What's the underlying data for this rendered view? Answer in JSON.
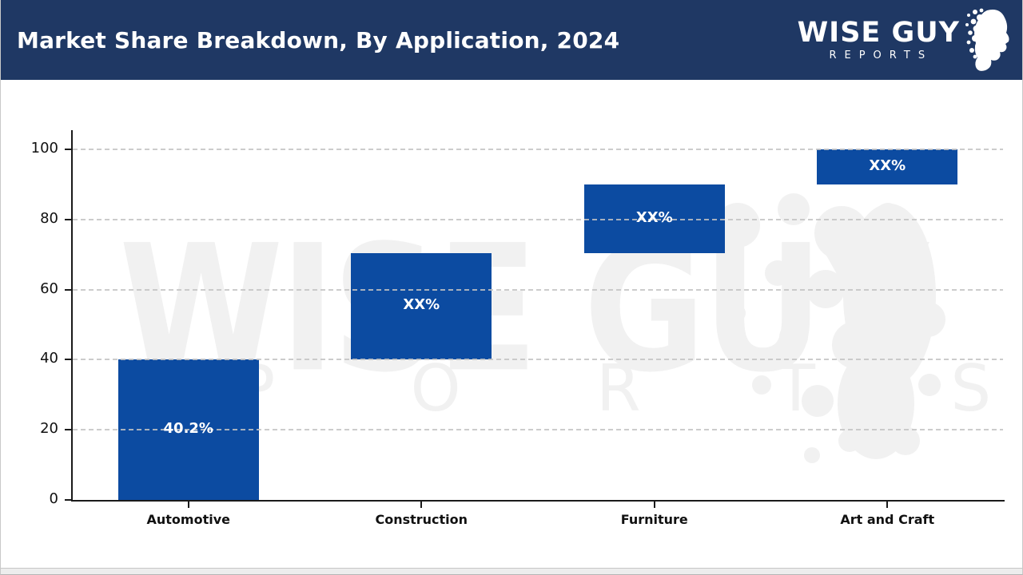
{
  "header": {
    "title": "Market Share Breakdown, By Application, 2024",
    "logo": {
      "line1": "WISE GUY",
      "line2": "REPORTS"
    }
  },
  "watermark": {
    "line1": "WISE GUY",
    "line2": "P O R T S"
  },
  "chart_data": {
    "type": "bar",
    "subtype": "waterfall",
    "title": "Market Share Breakdown, By Application, 2024",
    "xlabel": "",
    "ylabel": "",
    "categories": [
      "Automotive",
      "Construction",
      "Furniture",
      "Art and Craft"
    ],
    "segments": [
      {
        "category": "Automotive",
        "start": 0,
        "end": 40.2,
        "value": 40.2,
        "label": "40.2%"
      },
      {
        "category": "Construction",
        "start": 40.2,
        "end": 70.3,
        "value": 30.1,
        "label": "XX%"
      },
      {
        "category": "Furniture",
        "start": 70.3,
        "end": 89.9,
        "value": 19.6,
        "label": "XX%"
      },
      {
        "category": "Art and Craft",
        "start": 89.9,
        "end": 100,
        "value": 10.1,
        "label": "XX%"
      }
    ],
    "ylim": [
      0,
      100
    ],
    "yticks": [
      0,
      20,
      40,
      60,
      80,
      100
    ],
    "grid": "horizontal-dashed, drawn over bars",
    "legend": "none",
    "bar_color": "#0c4ba1",
    "bar_label_color": "#ffffff",
    "axis_color": "#1a1a1a",
    "header_color": "#1f3864",
    "gridline_color": "#c9c9c9",
    "watermark_color": "#f1f1f1"
  }
}
